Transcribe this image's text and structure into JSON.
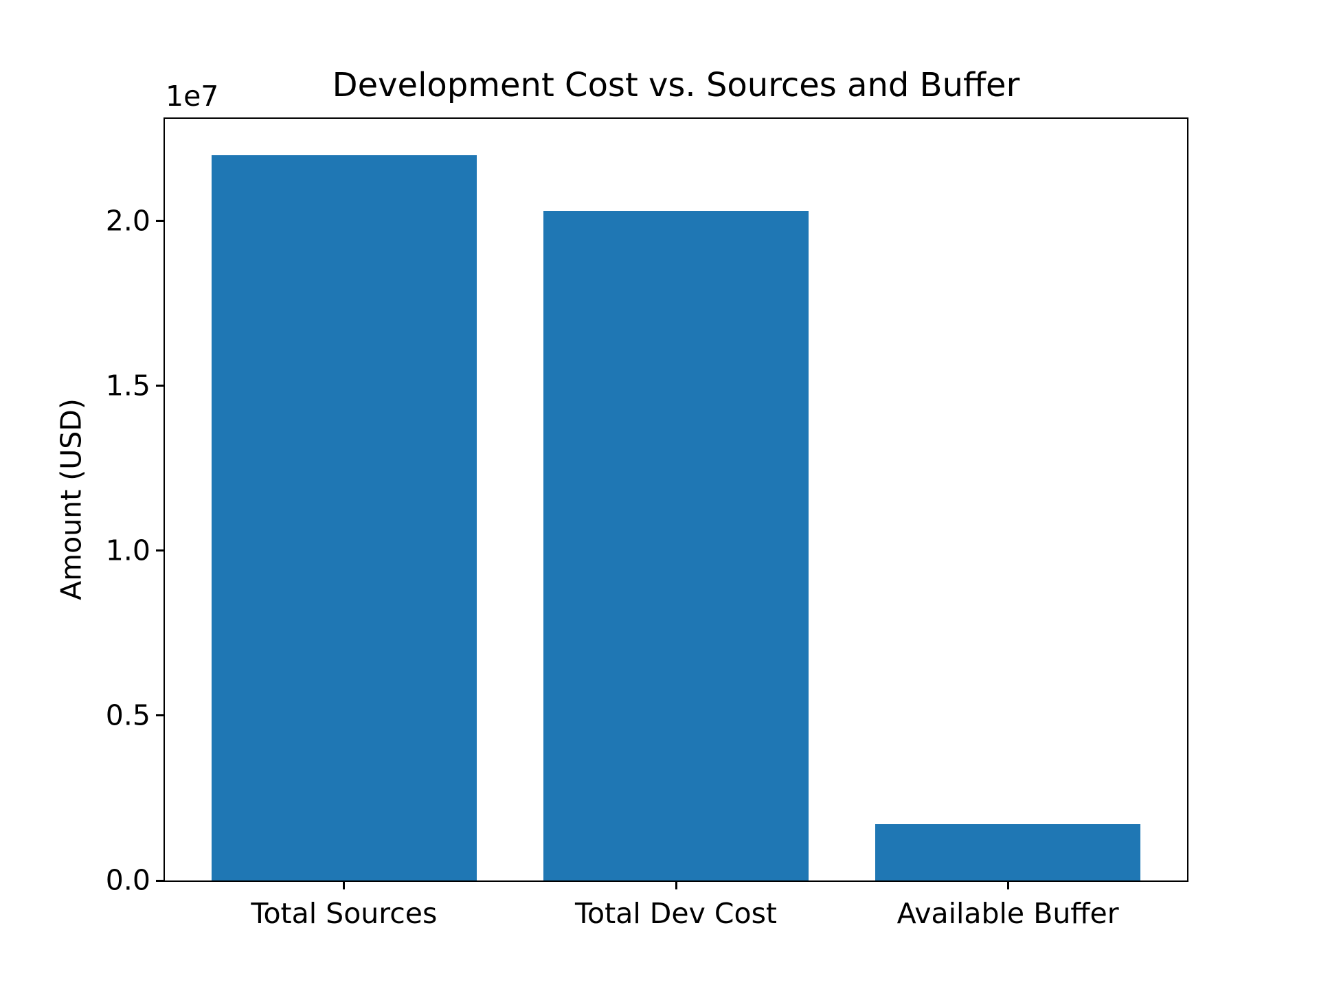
{
  "chart_data": {
    "type": "bar",
    "title": "Development Cost vs. Sources and Buffer",
    "categories": [
      "Total Sources",
      "Total Dev Cost",
      "Available Buffer"
    ],
    "values": [
      22000000,
      20300000,
      1700000
    ],
    "xlabel": "",
    "ylabel": "Amount (USD)",
    "y_offset_text": "1e7",
    "ylim": [
      0,
      23100000
    ],
    "yticks": {
      "values": [
        0,
        5000000,
        10000000,
        15000000,
        20000000
      ],
      "labels": [
        "0.0",
        "0.5",
        "1.0",
        "1.5",
        "2.0"
      ]
    },
    "bar_color": "#1f77b4",
    "bar_width_fraction": 0.8,
    "grid": false,
    "legend": null
  }
}
